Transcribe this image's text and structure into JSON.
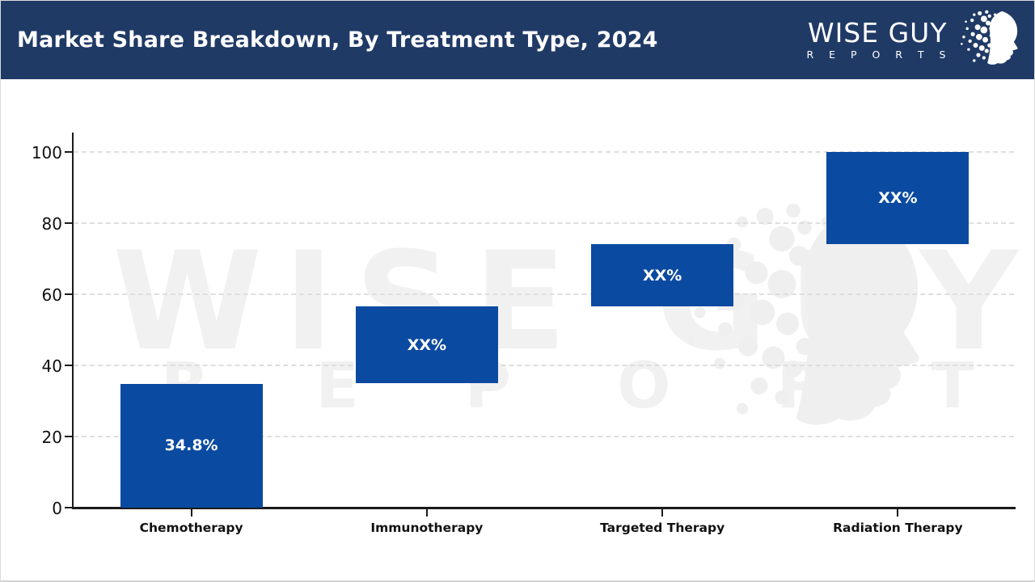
{
  "header": {
    "title": "Market Share Breakdown, By Treatment Type, 2024",
    "logo_line1": "WISE GUY",
    "logo_line2": "R E P O R T S"
  },
  "watermark": {
    "line1": "WISE GUY",
    "line2": "R E P O R T S"
  },
  "colors": {
    "header_bg": "#203a66",
    "bar": "#0b4aa1",
    "bar_label": "#ffffff",
    "grid": "#dedede",
    "axis": "#1a1a1a",
    "watermark": "#f1f1f1"
  },
  "chart_data": {
    "type": "bar",
    "subtype": "waterfall",
    "title": "Market Share Breakdown, By Treatment Type, 2024",
    "categories": [
      "Chemotherapy",
      "Immunotherapy",
      "Targeted Therapy",
      "Radiation Therapy"
    ],
    "bars": [
      {
        "category": "Chemotherapy",
        "base": 0,
        "top": 34.8,
        "label": "34.8%",
        "masked": false
      },
      {
        "category": "Immunotherapy",
        "base": 35,
        "top": 56.5,
        "label": "XX%",
        "masked": true
      },
      {
        "category": "Targeted Therapy",
        "base": 56.5,
        "top": 74,
        "label": "XX%",
        "masked": true
      },
      {
        "category": "Radiation Therapy",
        "base": 74,
        "top": 100,
        "label": "XX%",
        "masked": true
      }
    ],
    "yticks": [
      0,
      20,
      40,
      60,
      80,
      100
    ],
    "ylim": [
      0,
      105
    ],
    "xlabel": "",
    "ylabel": "",
    "grid": "horizontal-dashed",
    "legend": "none"
  }
}
